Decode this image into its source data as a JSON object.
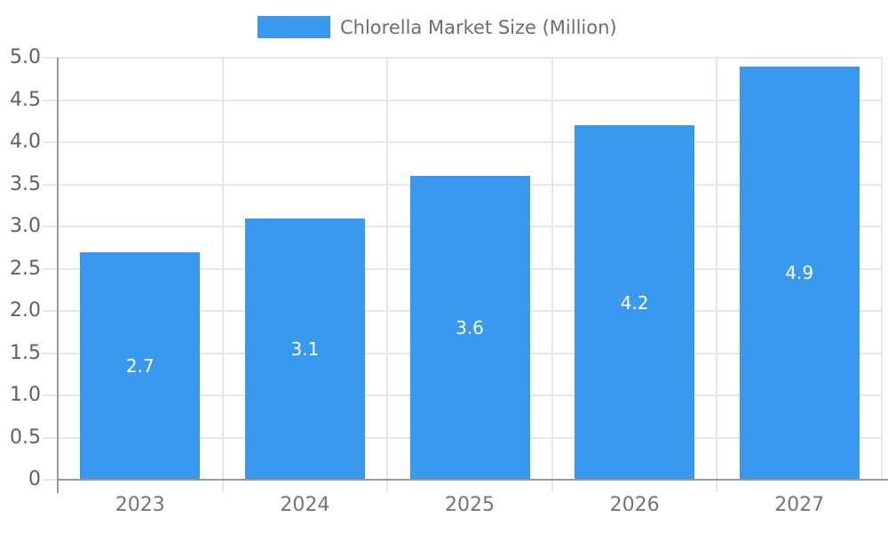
{
  "chart_data": {
    "type": "bar",
    "title": "Chlorella Market Size (Million)",
    "categories": [
      "2023",
      "2024",
      "2025",
      "2026",
      "2027"
    ],
    "values": [
      2.7,
      3.1,
      3.6,
      4.2,
      4.9
    ],
    "value_labels": [
      "2.7",
      "3.1",
      "3.6",
      "4.2",
      "4.9"
    ],
    "series": [
      {
        "name": "Chlorella Market Size (Million)",
        "values": [
          2.7,
          3.1,
          3.6,
          4.2,
          4.9
        ]
      }
    ],
    "xlabel": "",
    "ylabel": "",
    "ylim": [
      0,
      5
    ],
    "ytick_step": 0.5,
    "ytick_labels": [
      "0",
      "0.5",
      "1.0",
      "1.5",
      "2.0",
      "2.5",
      "3.0",
      "3.5",
      "4.0",
      "4.5",
      "5.0"
    ],
    "grid": true,
    "legend_position": "top-center",
    "colors": {
      "bar": "#3999EE",
      "value_label": "#FFFFFF",
      "grid_line": "#E7E7E7",
      "axis_line": "#9A9A9A",
      "y_tick_label": "#616161",
      "x_tick_label": "#757575",
      "legend_text": "#6E6E6E",
      "background": "#FFFFFF"
    }
  },
  "legend": {
    "label": "Chlorella Market Size (Million)",
    "swatch_icon": "legend-color-swatch"
  }
}
